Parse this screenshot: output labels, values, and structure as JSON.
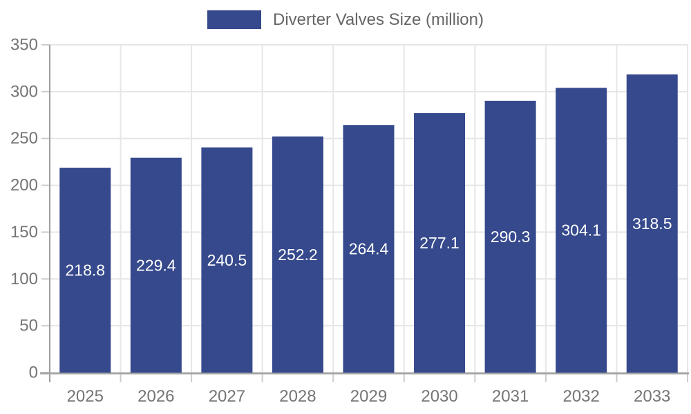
{
  "colors": {
    "bar": "#35498c",
    "grid": "#e6e6e6",
    "tick": "#cccccc",
    "y_axis_line": "#9e9e9e",
    "x_axis_line": "#a6a6a6",
    "axis_text": "#757575",
    "bar_label_text": "#ffffff",
    "legend_text": "#666666",
    "background": "#ffffff"
  },
  "chart_data": {
    "type": "bar",
    "title": "Diverter Valves Size (million)",
    "categories": [
      "2025",
      "2026",
      "2027",
      "2028",
      "2029",
      "2030",
      "2031",
      "2032",
      "2033"
    ],
    "values": [
      218.8,
      229.4,
      240.5,
      252.2,
      264.4,
      277.1,
      290.3,
      304.1,
      318.5
    ],
    "bar_labels": [
      "218.8",
      "229.4",
      "240.5",
      "252.2",
      "264.4",
      "277.1",
      "290.3",
      "304.1",
      "318.5"
    ],
    "xlabel": "",
    "ylabel": "",
    "ylim": [
      0,
      350
    ],
    "yticks": [
      0,
      50,
      100,
      150,
      200,
      250,
      300,
      350
    ],
    "grid": true,
    "bar_labels_position": "center",
    "legend": {
      "label": "Diverter Valves Size (million)",
      "position": "top"
    }
  }
}
